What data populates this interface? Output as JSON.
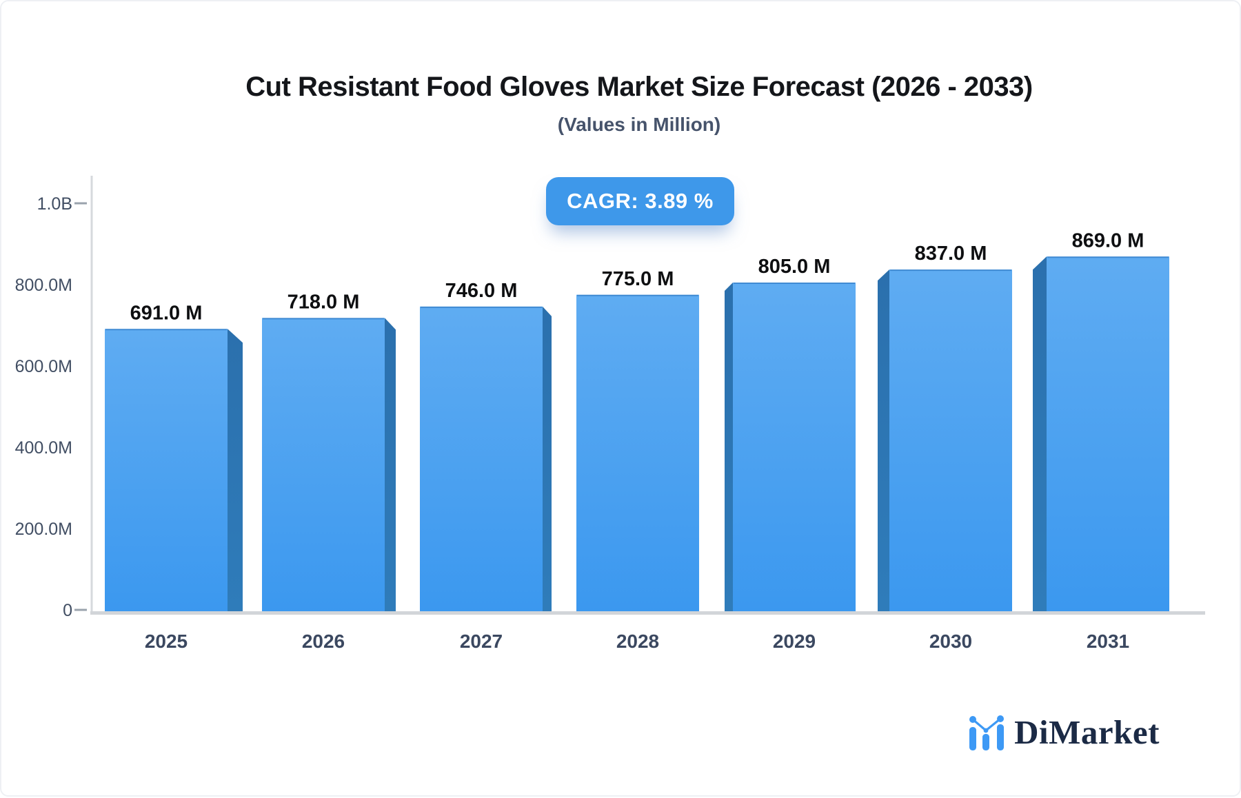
{
  "header": {
    "title": "Cut Resistant Food Gloves Market Size Forecast (2026 - 2033)",
    "subtitle": "(Values in Million)",
    "cagr_badge": "CAGR: 3.89 %"
  },
  "chart_data": {
    "type": "bar",
    "title": "Cut Resistant Food Gloves Market Size Forecast (2026 - 2033)",
    "subtitle": "(Values in Million)",
    "cagr_percent": 3.89,
    "unit": "Million",
    "categories": [
      "2025",
      "2026",
      "2027",
      "2028",
      "2029",
      "2030",
      "2031"
    ],
    "values": [
      691.0,
      718.0,
      746.0,
      775.0,
      805.0,
      837.0,
      869.0
    ],
    "value_labels": [
      "691.0 M",
      "718.0 M",
      "746.0 M",
      "775.0 M",
      "805.0 M",
      "837.0 M",
      "869.0 M"
    ],
    "ylim": [
      0,
      1000
    ],
    "yticks": [
      {
        "label": "1.0B",
        "value": 1000
      },
      {
        "label": "800.0M",
        "value": 800
      },
      {
        "label": "600.0M",
        "value": 600
      },
      {
        "label": "400.0M",
        "value": 400
      },
      {
        "label": "200.0M",
        "value": 200
      },
      {
        "label": "0",
        "value": 0
      }
    ],
    "grid": false,
    "legend": false,
    "bar_color": "#3E99F0",
    "bar_color_top": "#5FACF2",
    "bar_side_color": "#2E79B8"
  },
  "branding": {
    "logo_text": "DiMarket",
    "logo_icon": "bar-chart-logo-icon",
    "logo_color": "#3D99F5",
    "logo_text_color": "#1B2A45"
  },
  "colors": {
    "accent": "#3E98EA",
    "axis": "#D6D9DD",
    "tick_text": "#414E63",
    "year_text": "#3B4860",
    "value_text": "#0E0F11"
  }
}
